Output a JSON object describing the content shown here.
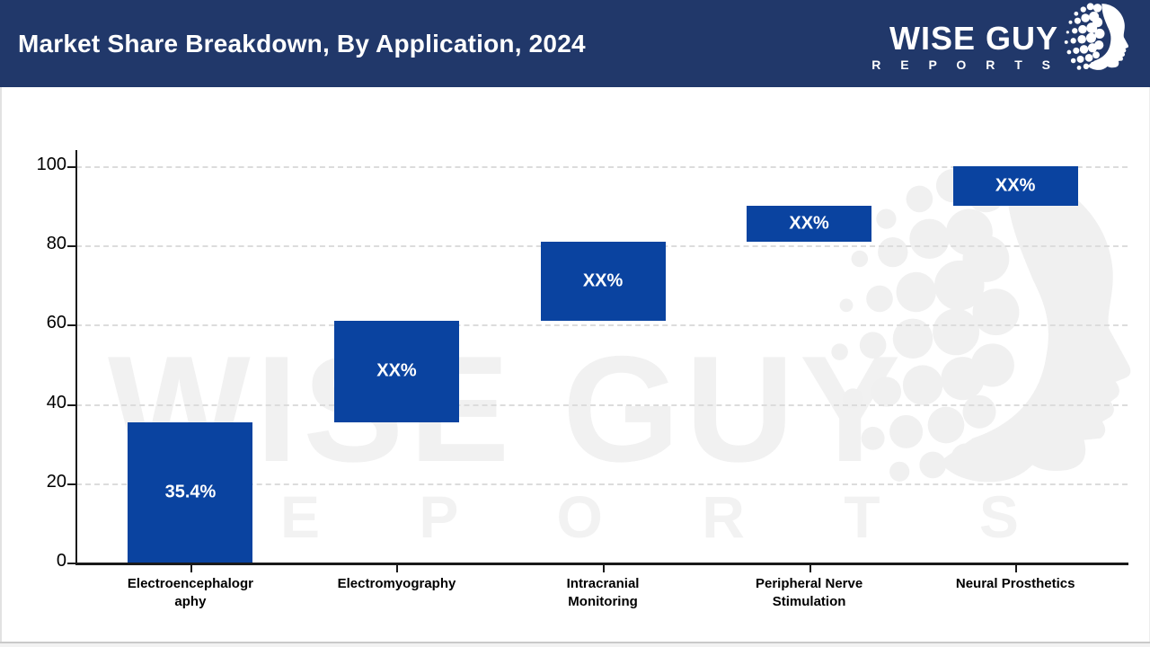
{
  "header": {
    "title": "Market Share Breakdown, By Application, 2024",
    "brand_line1": "WISE GUY",
    "brand_line2": "R E P O R T S",
    "bg_color": "#21386a"
  },
  "watermark": {
    "line1": "WISE GUY",
    "line2": "R E P O R T S"
  },
  "chart_data": {
    "type": "bar",
    "subtype": "waterfall",
    "title": "Market Share Breakdown, By Application, 2024",
    "categories": [
      "Electroencephalography",
      "Electromyography",
      "Intracranial Monitoring",
      "Peripheral Nerve Stimulation",
      "Neural Prosthetics"
    ],
    "category_label_lines": [
      [
        "Electroencephalogr",
        "aphy"
      ],
      [
        "Electromyography"
      ],
      [
        "Intracranial",
        "Monitoring"
      ],
      [
        "Peripheral Nerve",
        "Stimulation"
      ],
      [
        "Neural Prosthetics"
      ]
    ],
    "segments": [
      {
        "category": "Electroencephalography",
        "start": 0,
        "end": 35.4,
        "label": "35.4%"
      },
      {
        "category": "Electromyography",
        "start": 35.4,
        "end": 61,
        "label": "XX%"
      },
      {
        "category": "Intracranial Monitoring",
        "start": 61,
        "end": 81,
        "label": "XX%"
      },
      {
        "category": "Peripheral Nerve Stimulation",
        "start": 81,
        "end": 90,
        "label": "XX%"
      },
      {
        "category": "Neural Prosthetics",
        "start": 90,
        "end": 100,
        "label": "XX%"
      }
    ],
    "yticks": [
      0,
      20,
      40,
      60,
      80,
      100
    ],
    "ylim": [
      0,
      100
    ],
    "xlabel": "",
    "ylabel": "",
    "grid": "horizontal-dashed",
    "legend": "none",
    "bar_color": "#0a43a0",
    "bar_label_color": "#ffffff",
    "unit": "%"
  }
}
